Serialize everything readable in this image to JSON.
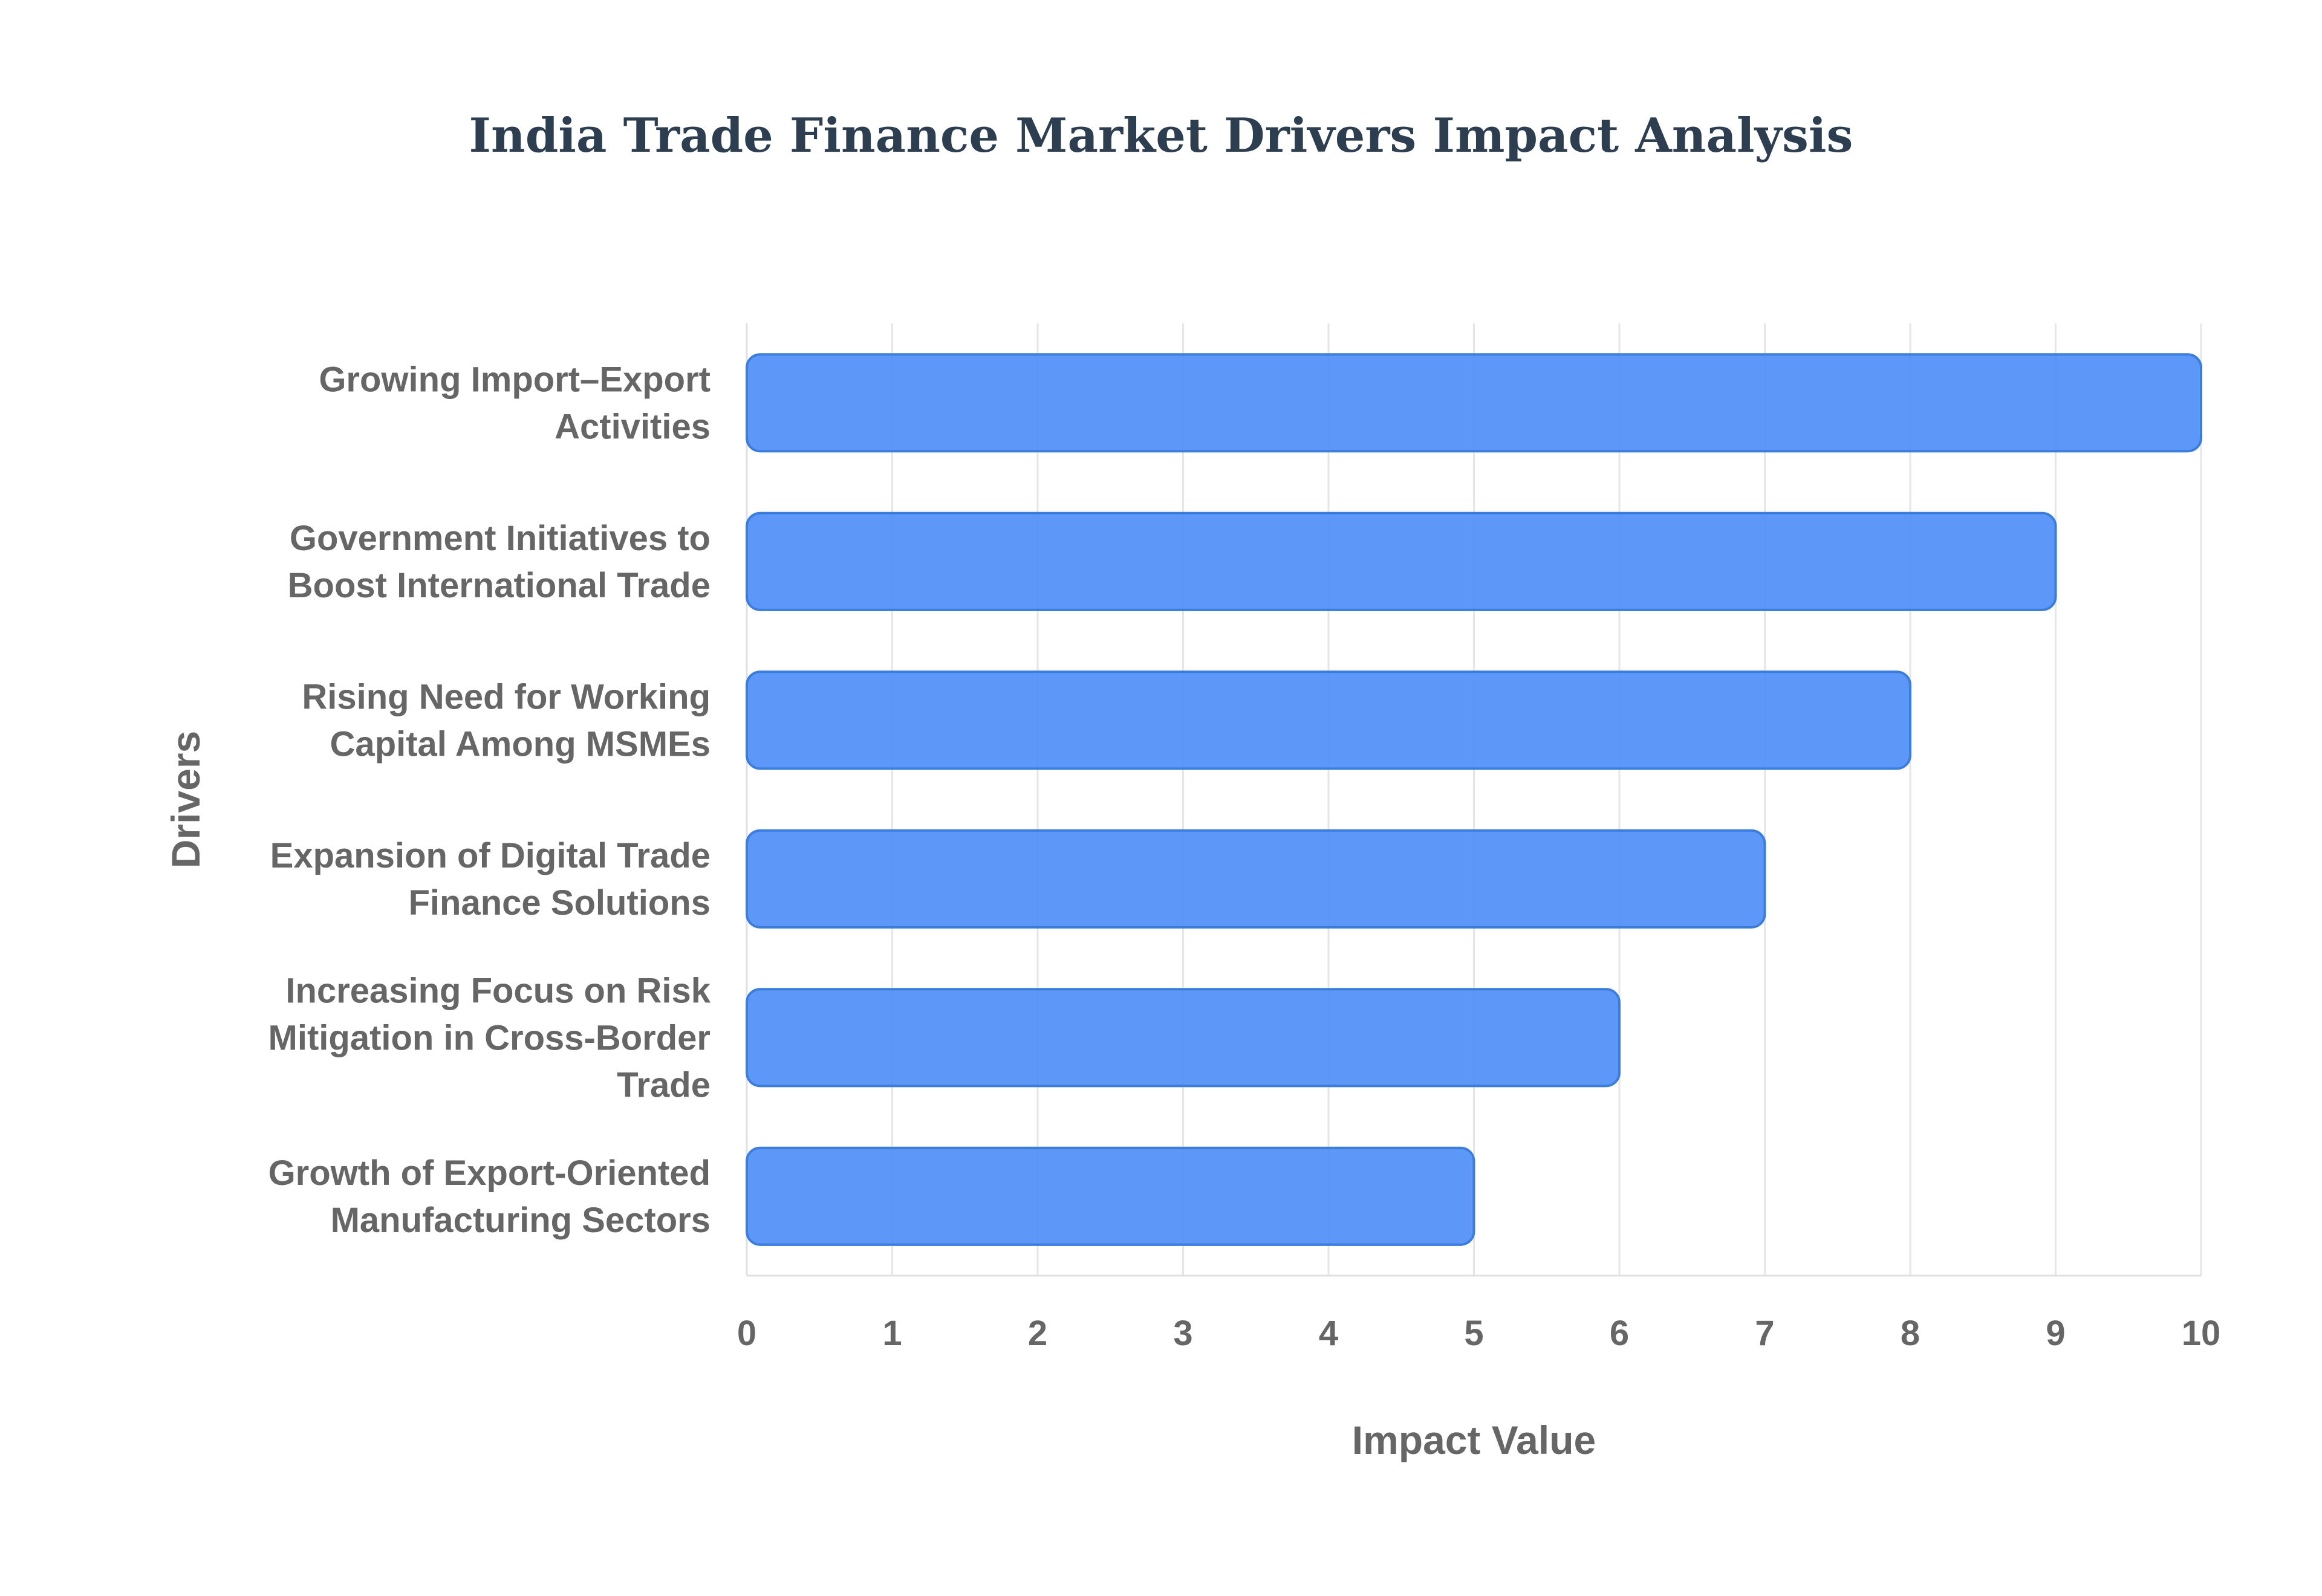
{
  "chart_data": {
    "type": "bar",
    "orientation": "horizontal",
    "title": "India Trade Finance Market Drivers Impact Analysis",
    "xlabel": "Impact Value",
    "ylabel": "Drivers",
    "categories": [
      "Growing Import–Export Activities",
      "Government Initiatives to Boost International Trade",
      "Rising Need for Working Capital Among MSMEs",
      "Expansion of Digital Trade Finance Solutions",
      "Increasing Focus on Risk Mitigation in Cross-Border Trade",
      "Growth of Export-Oriented Manufacturing Sectors"
    ],
    "category_lines": [
      [
        "Growing Import–Export",
        "Activities"
      ],
      [
        "Government Initiatives to",
        "Boost International Trade"
      ],
      [
        "Rising Need for Working",
        "Capital Among MSMEs"
      ],
      [
        "Expansion of Digital Trade",
        "Finance Solutions"
      ],
      [
        "Increasing Focus on Risk",
        "Mitigation in Cross-Border",
        "Trade"
      ],
      [
        "Growth of Export-Oriented",
        "Manufacturing Sectors"
      ]
    ],
    "values": [
      10,
      9,
      8,
      7,
      6,
      5
    ],
    "xlim": [
      0,
      10
    ],
    "xticks": [
      "0",
      "1",
      "2",
      "3",
      "4",
      "5",
      "6",
      "7",
      "8",
      "9",
      "10"
    ],
    "grid": true,
    "legend": "none",
    "colors": {
      "bar_fill": "#4f8ff7",
      "bar_stroke": "#3b7ddd",
      "grid": "#e6e6e6",
      "axis": "#e0e0e0",
      "text": "#666666",
      "title": "#2c3e50"
    }
  }
}
